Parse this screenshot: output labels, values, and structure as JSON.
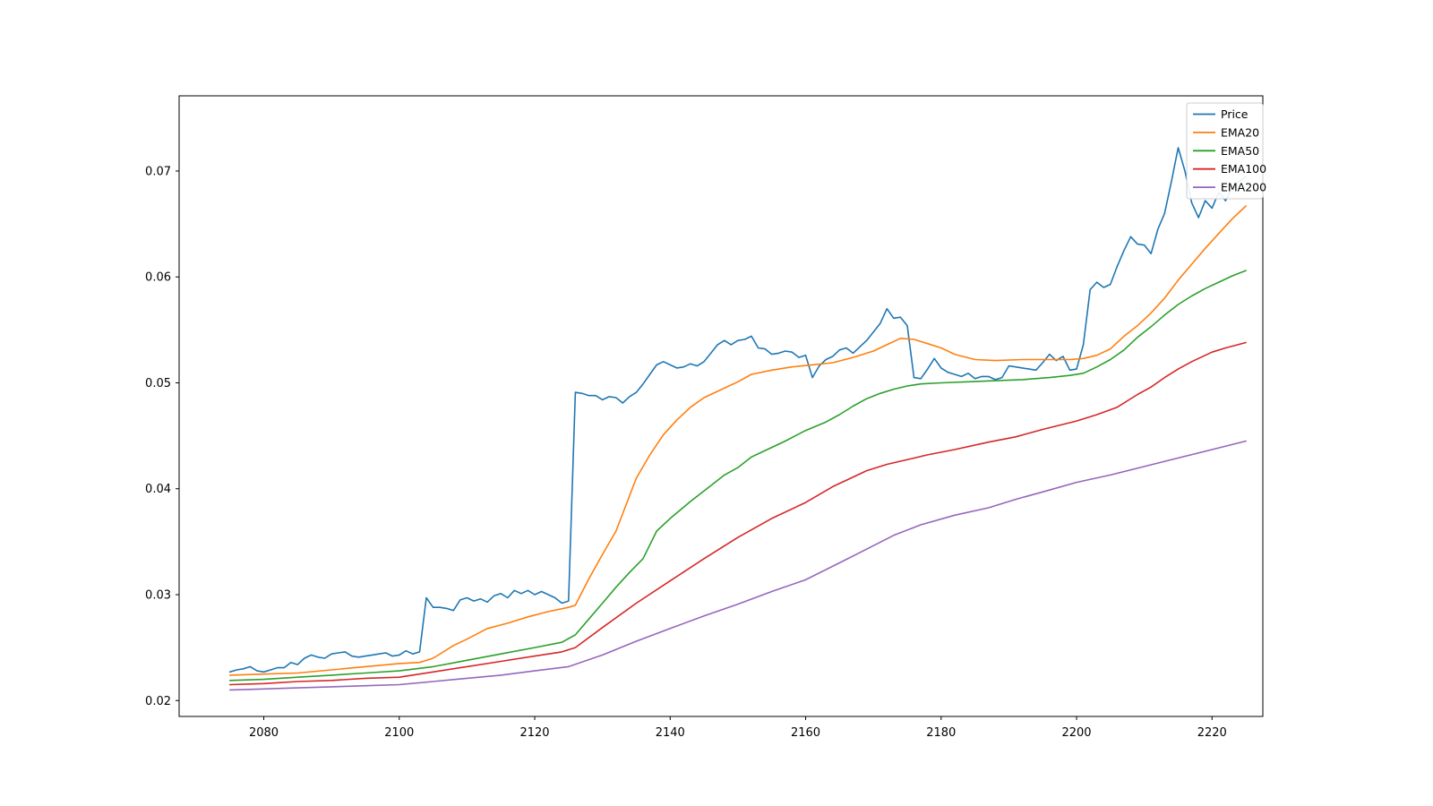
{
  "figure": {
    "background_color": "#ffffff",
    "plot_background_color": "#ffffff",
    "spine_color": "#000000",
    "tick_label_font_px": 13
  },
  "legend": {
    "position": "upper-right",
    "border_color": "#cccccc",
    "background_color": "#ffffff",
    "entries": [
      "Price",
      "EMA20",
      "EMA50",
      "EMA100",
      "EMA200"
    ]
  },
  "chart_data": {
    "type": "line",
    "title": "",
    "xlabel": "",
    "ylabel": "",
    "grid": false,
    "legend_position": "upper right",
    "xlim": [
      2067.5,
      2227.5
    ],
    "ylim": [
      0.0185,
      0.0771
    ],
    "x_ticks": [
      2080,
      2100,
      2120,
      2140,
      2160,
      2180,
      2200,
      2220
    ],
    "x_tick_labels": [
      "2080",
      "2100",
      "2120",
      "2140",
      "2160",
      "2180",
      "2200",
      "2220"
    ],
    "y_ticks": [
      0.02,
      0.03,
      0.04,
      0.05,
      0.06,
      0.07
    ],
    "y_tick_labels": [
      "0.02",
      "0.03",
      "0.04",
      "0.05",
      "0.06",
      "0.07"
    ],
    "series": [
      {
        "name": "Price",
        "color": "#1f77b4",
        "x_start": 2075,
        "x_step": 1,
        "y": [
          0.0227,
          0.0229,
          0.023,
          0.0232,
          0.0228,
          0.0227,
          0.0229,
          0.0231,
          0.0231,
          0.0236,
          0.0234,
          0.024,
          0.0243,
          0.0241,
          0.024,
          0.0244,
          0.0245,
          0.0246,
          0.0242,
          0.0241,
          0.0242,
          0.0243,
          0.0244,
          0.0245,
          0.0242,
          0.0243,
          0.0247,
          0.0244,
          0.0246,
          0.0297,
          0.0288,
          0.0288,
          0.0287,
          0.0285,
          0.0295,
          0.0297,
          0.0294,
          0.0296,
          0.0293,
          0.0299,
          0.0301,
          0.0297,
          0.0304,
          0.0301,
          0.0304,
          0.03,
          0.0303,
          0.03,
          0.0297,
          0.0292,
          0.0294,
          0.0491,
          0.049,
          0.0488,
          0.0488,
          0.0484,
          0.0487,
          0.0486,
          0.0481,
          0.0487,
          0.0491,
          0.0499,
          0.0508,
          0.0517,
          0.052,
          0.0517,
          0.0514,
          0.0515,
          0.0518,
          0.0516,
          0.052,
          0.0528,
          0.0536,
          0.054,
          0.0536,
          0.054,
          0.0541,
          0.0544,
          0.0533,
          0.0532,
          0.0527,
          0.0528,
          0.053,
          0.0529,
          0.0524,
          0.0526,
          0.0505,
          0.0516,
          0.0522,
          0.0525,
          0.0531,
          0.0533,
          0.0528,
          0.0534,
          0.054,
          0.0548,
          0.0556,
          0.057,
          0.0561,
          0.0562,
          0.0554,
          0.0505,
          0.0504,
          0.0513,
          0.0523,
          0.0514,
          0.051,
          0.0508,
          0.0506,
          0.0509,
          0.0504,
          0.0506,
          0.0506,
          0.0503,
          0.0505,
          0.0516,
          0.0515,
          0.0514,
          0.0513,
          0.0512,
          0.0519,
          0.0527,
          0.0521,
          0.0525,
          0.0512,
          0.0513,
          0.0536,
          0.0588,
          0.0595,
          0.059,
          0.0593,
          0.061,
          0.0625,
          0.0638,
          0.0631,
          0.063,
          0.0622,
          0.0645,
          0.066,
          0.069,
          0.0722,
          0.07,
          0.067,
          0.0656,
          0.0672,
          0.0665,
          0.068,
          0.0672,
          0.0685,
          0.069,
          0.0695
        ]
      },
      {
        "name": "EMA20",
        "color": "#ff7f0e",
        "x": [
          2075,
          2080,
          2085,
          2090,
          2095,
          2100,
          2103,
          2105,
          2108,
          2110,
          2113,
          2116,
          2119,
          2122,
          2125,
          2126,
          2128,
          2130,
          2132,
          2135,
          2137,
          2139,
          2141,
          2143,
          2145,
          2148,
          2150,
          2152,
          2155,
          2158,
          2161,
          2164,
          2167,
          2170,
          2172,
          2174,
          2176,
          2178,
          2180,
          2182,
          2185,
          2188,
          2192,
          2196,
          2199,
          2201,
          2203,
          2205,
          2207,
          2209,
          2211,
          2213,
          2215,
          2217,
          2219,
          2221,
          2223,
          2225
        ],
        "y": [
          0.0224,
          0.0225,
          0.0226,
          0.0229,
          0.0232,
          0.0235,
          0.0236,
          0.024,
          0.0252,
          0.0258,
          0.0268,
          0.0273,
          0.0279,
          0.0284,
          0.0288,
          0.029,
          0.0315,
          0.0338,
          0.036,
          0.041,
          0.0432,
          0.0451,
          0.0465,
          0.0477,
          0.0486,
          0.0495,
          0.0501,
          0.0508,
          0.0512,
          0.0515,
          0.0517,
          0.0519,
          0.0524,
          0.053,
          0.0536,
          0.0542,
          0.0541,
          0.0537,
          0.0533,
          0.0527,
          0.0522,
          0.0521,
          0.0522,
          0.0522,
          0.0522,
          0.0523,
          0.0526,
          0.0532,
          0.0544,
          0.0554,
          0.0566,
          0.058,
          0.0597,
          0.0612,
          0.0627,
          0.0641,
          0.0655,
          0.0667
        ]
      },
      {
        "name": "EMA50",
        "color": "#2ca02c",
        "x": [
          2075,
          2080,
          2085,
          2090,
          2095,
          2100,
          2105,
          2110,
          2115,
          2120,
          2124,
          2126,
          2128,
          2130,
          2132,
          2134,
          2136,
          2138,
          2140,
          2143,
          2146,
          2148,
          2150,
          2152,
          2155,
          2157,
          2160,
          2163,
          2165,
          2167,
          2169,
          2171,
          2173,
          2175,
          2177,
          2180,
          2184,
          2188,
          2192,
          2196,
          2199,
          2201,
          2203,
          2205,
          2207,
          2209,
          2211,
          2213,
          2215,
          2217,
          2219,
          2221,
          2223,
          2225
        ],
        "y": [
          0.0219,
          0.022,
          0.0222,
          0.0224,
          0.0226,
          0.0228,
          0.0232,
          0.0238,
          0.0244,
          0.025,
          0.0255,
          0.0262,
          0.0277,
          0.0292,
          0.0307,
          0.0321,
          0.0334,
          0.036,
          0.0372,
          0.0388,
          0.0403,
          0.0413,
          0.042,
          0.043,
          0.0439,
          0.0445,
          0.0455,
          0.0463,
          0.047,
          0.0478,
          0.0485,
          0.049,
          0.0494,
          0.0497,
          0.0499,
          0.05,
          0.0501,
          0.0502,
          0.0503,
          0.0505,
          0.0507,
          0.0509,
          0.0515,
          0.0522,
          0.0531,
          0.0543,
          0.0553,
          0.0564,
          0.0574,
          0.0582,
          0.0589,
          0.0595,
          0.0601,
          0.0606
        ]
      },
      {
        "name": "EMA100",
        "color": "#d62728",
        "x": [
          2075,
          2080,
          2085,
          2090,
          2095,
          2100,
          2105,
          2110,
          2115,
          2120,
          2124,
          2126,
          2130,
          2135,
          2140,
          2145,
          2150,
          2155,
          2160,
          2164,
          2169,
          2172,
          2174,
          2178,
          2182,
          2187,
          2191,
          2195,
          2200,
          2203,
          2206,
          2209,
          2211,
          2213,
          2215,
          2217,
          2220,
          2222,
          2225
        ],
        "y": [
          0.0215,
          0.0216,
          0.0218,
          0.0219,
          0.0221,
          0.0222,
          0.0227,
          0.0232,
          0.0237,
          0.0242,
          0.0246,
          0.025,
          0.0269,
          0.0292,
          0.0313,
          0.0334,
          0.0354,
          0.0372,
          0.0387,
          0.0402,
          0.0417,
          0.0423,
          0.0426,
          0.0432,
          0.0437,
          0.0444,
          0.0449,
          0.0456,
          0.0464,
          0.047,
          0.0477,
          0.0489,
          0.0496,
          0.0505,
          0.0513,
          0.052,
          0.0529,
          0.0533,
          0.0538
        ]
      },
      {
        "name": "EMA200",
        "color": "#9467bd",
        "x": [
          2075,
          2080,
          2085,
          2090,
          2095,
          2100,
          2105,
          2110,
          2115,
          2120,
          2125,
          2130,
          2135,
          2140,
          2145,
          2150,
          2155,
          2160,
          2165,
          2169,
          2173,
          2177,
          2182,
          2187,
          2191,
          2195,
          2200,
          2205,
          2210,
          2215,
          2220,
          2225
        ],
        "y": [
          0.021,
          0.0211,
          0.0212,
          0.0213,
          0.0214,
          0.0215,
          0.0218,
          0.0221,
          0.0224,
          0.0228,
          0.0232,
          0.0243,
          0.0256,
          0.0268,
          0.028,
          0.0291,
          0.0303,
          0.0314,
          0.033,
          0.0343,
          0.0356,
          0.0366,
          0.0375,
          0.0382,
          0.039,
          0.0397,
          0.0406,
          0.0413,
          0.0421,
          0.0429,
          0.0437,
          0.0445
        ]
      }
    ]
  }
}
